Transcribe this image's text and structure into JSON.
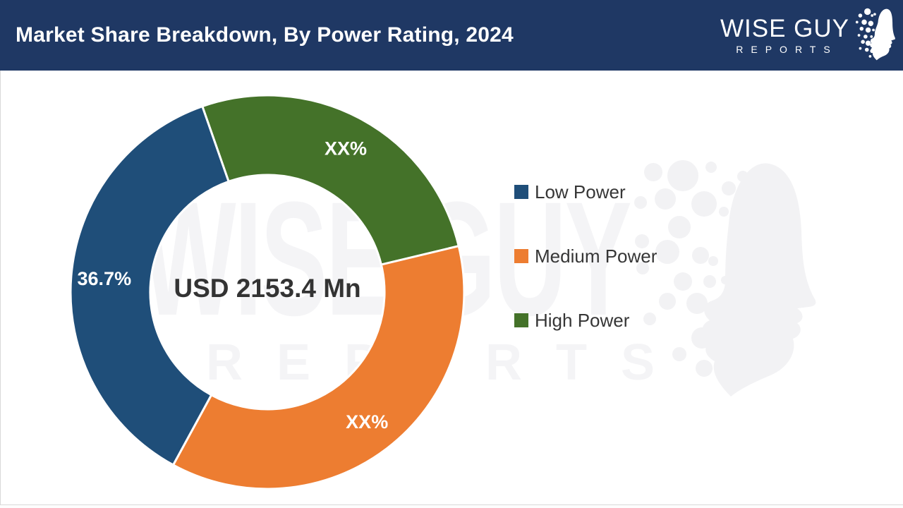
{
  "header": {
    "title": "Market Share Breakdown, By Power Rating, 2024",
    "logo": {
      "line1": "WISE GUY",
      "line2": "REPORTS"
    }
  },
  "watermark": {
    "line1": "WISE GUY",
    "line2": "REPORTS"
  },
  "chart_data": {
    "type": "pie",
    "subtype": "donut",
    "title": "Market Share Breakdown, By Power Rating, 2024",
    "center_label": "USD 2153.4 Mn",
    "start_angle_deg": -19.3,
    "direction": "clockwise",
    "legend_position": "right",
    "categories": [
      "High Power",
      "Medium Power",
      "Low Power"
    ],
    "series": [
      {
        "name": "High Power",
        "value_pct": 26.6,
        "label": "XX%",
        "color": "#447229"
      },
      {
        "name": "Medium Power",
        "value_pct": 36.7,
        "label": "XX%",
        "color": "#ed7d31"
      },
      {
        "name": "Low Power",
        "value_pct": 36.7,
        "label": "36.7%",
        "color": "#1f4e79"
      }
    ]
  },
  "legend": {
    "items": [
      {
        "label": "Low Power",
        "color": "#1f4e79"
      },
      {
        "label": "Medium Power",
        "color": "#ed7d31"
      },
      {
        "label": "High Power",
        "color": "#447229"
      }
    ]
  },
  "colors": {
    "header_bg": "#1f3864",
    "title_text": "#ffffff",
    "center_text": "#333333",
    "legend_text": "#363636",
    "slice_label_text": "#ffffff",
    "watermark": "#f4f4f6",
    "divider": "#d9d9d9"
  }
}
